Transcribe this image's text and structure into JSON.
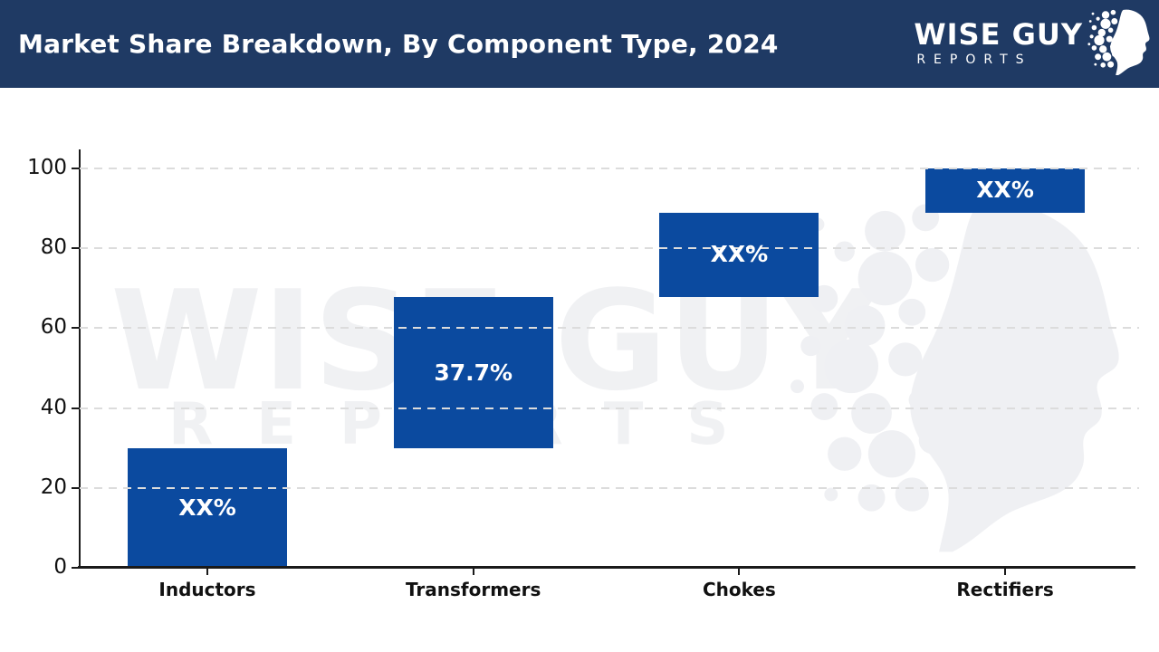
{
  "header": {
    "title": "Market Share Breakdown, By Component Type, 2024",
    "bg_color": "#1f3a64",
    "logo": {
      "line1": "WISE GUY",
      "line2": "REPORTS"
    }
  },
  "watermark": {
    "line1": "WISE GUY",
    "line2": "REPORTS"
  },
  "colors": {
    "header_bg": "#1f3a64",
    "bar": "#0b4a9f",
    "grid": "#dcdcdc",
    "axis": "#1a1a1a",
    "tick_text": "#111111",
    "bar_label_text": "#ffffff",
    "watermark": "#f0f1f3",
    "frame": "#cccccc"
  },
  "chart_data": {
    "type": "bar",
    "variant": "floating-waterfall",
    "title": "Market Share Breakdown, By Component Type, 2024",
    "categories": [
      "Inductors",
      "Transformers",
      "Chokes",
      "Rectifiers"
    ],
    "segments": [
      {
        "category": "Inductors",
        "start": 0,
        "end": 30,
        "value": 30,
        "label": "XX%"
      },
      {
        "category": "Transformers",
        "start": 30,
        "end": 67.7,
        "value": 37.7,
        "label": "37.7%"
      },
      {
        "category": "Chokes",
        "start": 67.7,
        "end": 89,
        "value": 21.3,
        "label": "XX%"
      },
      {
        "category": "Rectifiers",
        "start": 89,
        "end": 100,
        "value": 11,
        "label": "XX%"
      }
    ],
    "y_ticks": [
      0,
      20,
      40,
      60,
      80,
      100
    ],
    "ylim": [
      0,
      105
    ],
    "xlabel": "",
    "ylabel": "",
    "grid": "dashed-horizontal",
    "legend": "none",
    "bar_color": "#0b4a9f",
    "label_color": "#ffffff"
  }
}
